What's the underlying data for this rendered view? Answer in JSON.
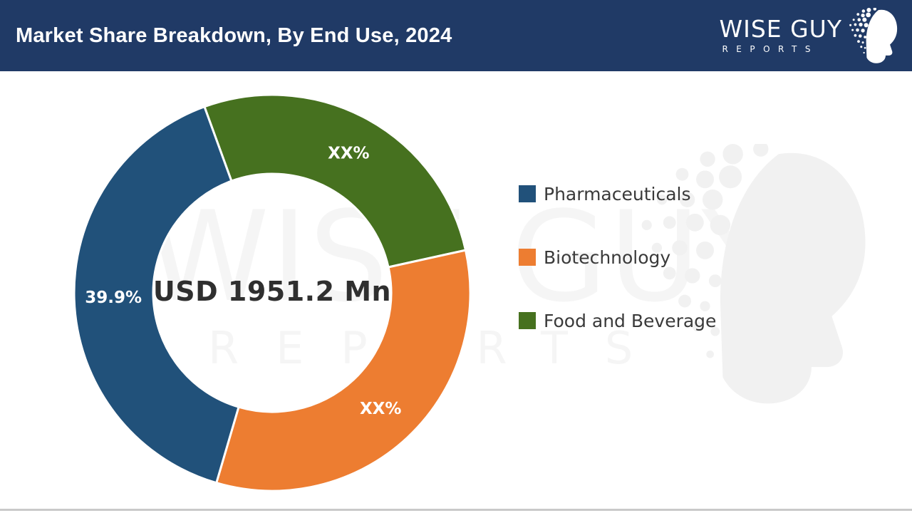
{
  "header": {
    "title": "Market Share Breakdown, By End Use, 2024",
    "bg_color": "#203A66"
  },
  "logo": {
    "line1": "WISE GUY",
    "line2": "REPORTS"
  },
  "watermark": {
    "line1": "WISE GUY",
    "line2": "REPORTS"
  },
  "chart_data": {
    "type": "pie",
    "subtype": "donut",
    "title": "Market Share Breakdown, By End Use, 2024",
    "center_label": "USD 1951.2 Mn",
    "start_angle_deg": -20,
    "legend_position": "right",
    "slices": [
      {
        "label": "Food and Beverage",
        "display_label": "XX%",
        "percent": 27.1,
        "color": "#46711F"
      },
      {
        "label": "Biotechnology",
        "display_label": "XX%",
        "percent": 33.0,
        "color": "#ED7D31"
      },
      {
        "label": "Pharmaceuticals",
        "display_label": "39.9%",
        "percent": 39.9,
        "color": "#21517A"
      }
    ]
  },
  "legend": {
    "items": [
      {
        "label": "Pharmaceuticals",
        "color": "#21517A"
      },
      {
        "label": "Biotechnology",
        "color": "#ED7D31"
      },
      {
        "label": "Food and Beverage",
        "color": "#46711F"
      }
    ]
  },
  "colors": {
    "header_bg": "#203A66",
    "blue": "#21517A",
    "orange": "#ED7D31",
    "green": "#46711F",
    "watermark": "#f2f2f2"
  }
}
